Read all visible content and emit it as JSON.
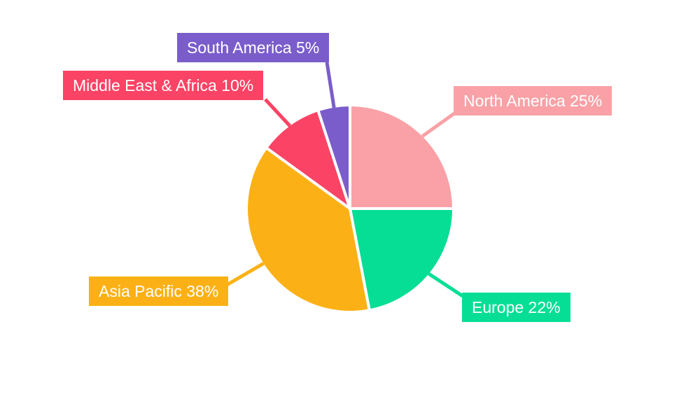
{
  "page": {
    "background": "#FFFFFF"
  },
  "chart_data": {
    "type": "pie",
    "title": "",
    "categories": [
      "North America",
      "Europe",
      "Asia Pacific",
      "Middle East & Africa",
      "South America"
    ],
    "values": [
      25,
      22,
      38,
      10,
      5
    ],
    "unit": "%",
    "direction": "clockwise",
    "start_angle": "12-o'clock",
    "legend_position": "callout-labels-with-leader-lines",
    "grid": "off",
    "slice_border_color": "#FFFFFF",
    "label_text_color": "#FFFFFF",
    "slices": [
      {
        "label": "North America",
        "value": 25,
        "display": "North America 25%",
        "color": "#F9A1A6"
      },
      {
        "label": "Europe",
        "value": 22,
        "display": "Europe 22%",
        "color": "#06DE96"
      },
      {
        "label": "Asia Pacific",
        "value": 38,
        "display": "Asia Pacific 38%",
        "color": "#FBB116"
      },
      {
        "label": "Middle East & Africa",
        "value": 10,
        "display": "Middle East & Africa 10%",
        "color": "#FB4365"
      },
      {
        "label": "South America",
        "value": 5,
        "display": "South America 5%",
        "color": "#7A5DCB"
      }
    ]
  }
}
